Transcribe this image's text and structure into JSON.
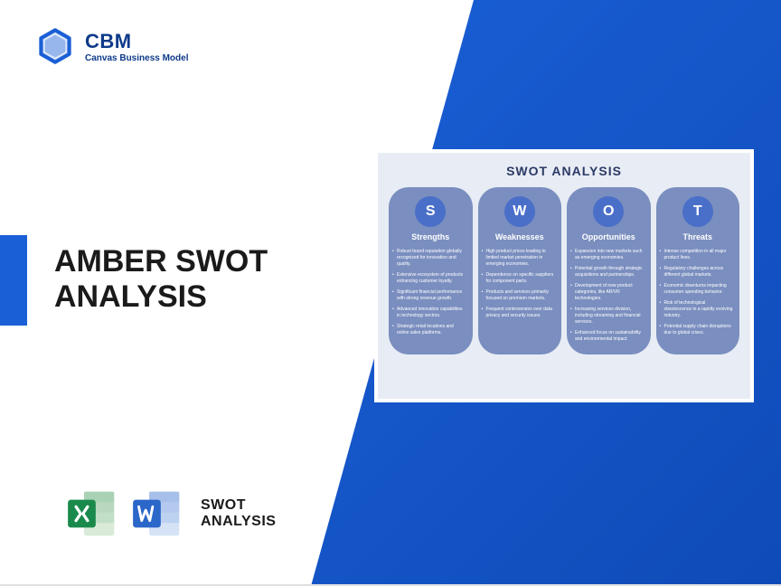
{
  "logo": {
    "name": "CBM",
    "tagline": "Canvas Business Model",
    "icon_color": "#1a5fd6"
  },
  "accent_bar_color": "#1a5fd6",
  "diagonal_gradient": [
    "#1a5fd6",
    "#0f4bb8"
  ],
  "title": "AMBER SWOT\nANALYSIS",
  "swot_card": {
    "background": "#e8ecf4",
    "heading": "SWOT ANALYSIS",
    "heading_color": "#2b3a66",
    "col_bg": "#7a8ebf",
    "letter_bg": "#4a6fc9",
    "columns": [
      {
        "letter": "S",
        "label": "Strengths",
        "items": [
          "Robust brand reputation globally recognized for innovation and quality.",
          "Extensive ecosystem of products enhancing customer loyalty.",
          "Significant financial performance with strong revenue growth.",
          "Advanced innovation capabilities in technology sectors.",
          "Strategic retail locations and online sales platforms."
        ]
      },
      {
        "letter": "W",
        "label": "Weaknesses",
        "items": [
          "High product prices leading to limited market penetration in emerging economies.",
          "Dependence on specific suppliers for component parts.",
          "Products and services primarily focused on premium markets.",
          "Frequent controversies over data privacy and security issues."
        ]
      },
      {
        "letter": "O",
        "label": "Opportunities",
        "items": [
          "Expansion into new markets such as emerging economies.",
          "Potential growth through strategic acquisitions and partnerships.",
          "Development of new product categories, like AR/VR technologies.",
          "Increasing services division, including streaming and financial services.",
          "Enhanced focus on sustainability and environmental impact."
        ]
      },
      {
        "letter": "T",
        "label": "Threats",
        "items": [
          "Intense competition in all major product lines.",
          "Regulatory challenges across different global markets.",
          "Economic downturns impacting consumer spending behavior.",
          "Risk of technological obsolescence in a rapidly evolving industry.",
          "Potential supply chain disruptions due to global crises."
        ]
      }
    ]
  },
  "files": {
    "excel_color": "#1a8a4c",
    "word_color": "#2b66c9",
    "label": "SWOT\nANALYSIS"
  }
}
